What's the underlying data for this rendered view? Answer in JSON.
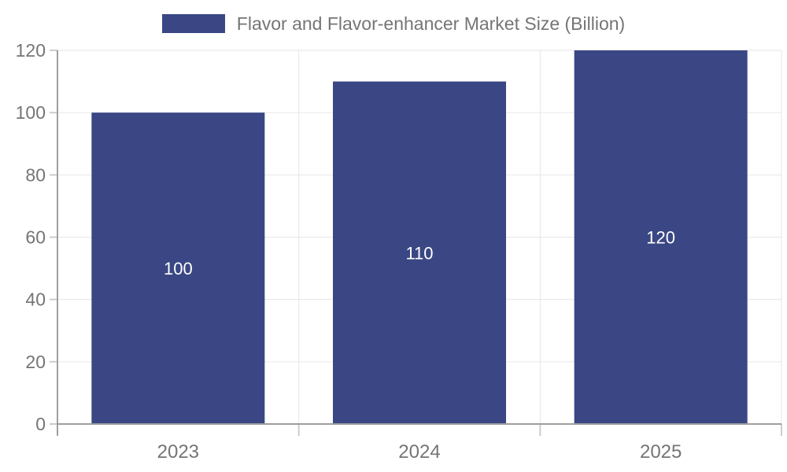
{
  "chart_data": {
    "type": "bar",
    "title": "Flavor and Flavor-enhancer Market Size (Billion)",
    "legend_entries": [
      "Flavor and Flavor-enhancer Market Size (Billion)"
    ],
    "legend_position": "top",
    "categories": [
      "2023",
      "2024",
      "2025"
    ],
    "values": [
      100,
      110,
      120
    ],
    "xlabel": "",
    "ylabel": "",
    "ylim": [
      0,
      120
    ],
    "yticks": [
      0,
      20,
      40,
      60,
      80,
      100,
      120
    ],
    "grid": true,
    "colors": {
      "bar": "#3A4784",
      "bar_label": "#ffffff",
      "axis": "#9e9e9e",
      "grid": "#e6e6e6",
      "tick": "#cccccc",
      "text": "#757575"
    }
  }
}
